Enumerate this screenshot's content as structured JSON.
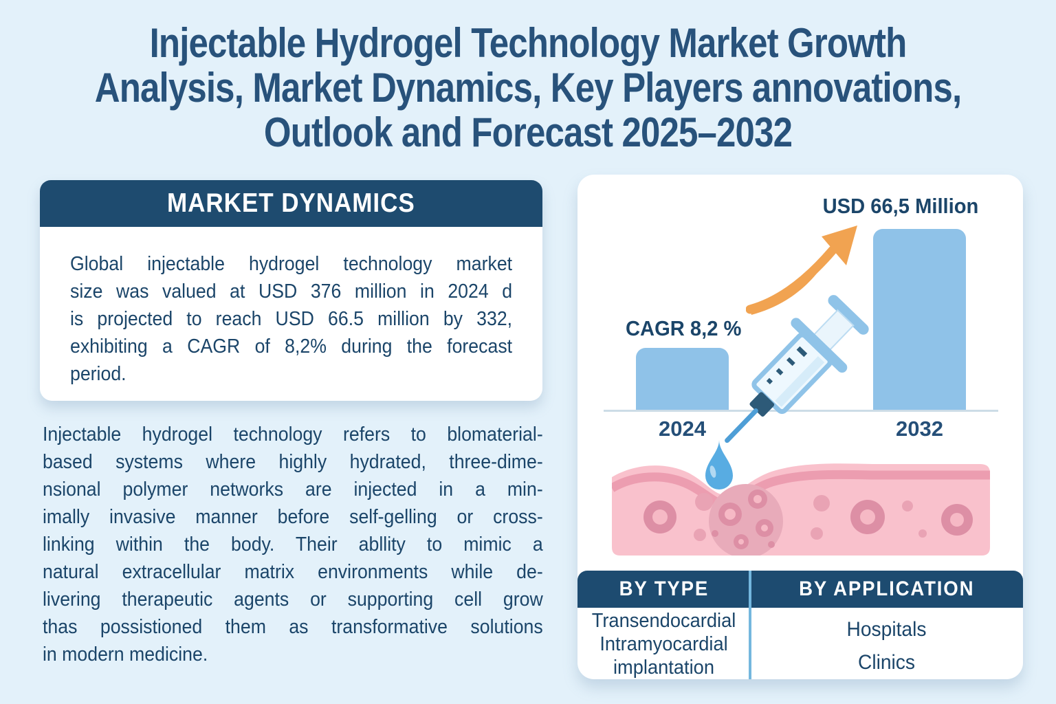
{
  "page": {
    "background": "#e3f1fa",
    "title_lines": [
      "Injectable Hydrogel Technology Market Growth",
      "Analysis, Market Dynamics, Key Players annovations,",
      "Outlook and Forecast 2025–2032"
    ]
  },
  "market_dynamics": {
    "header": "MARKET DYNAMICS",
    "lines": [
      "Global injectable hydrogel technology market",
      "size was valued at USD 376 million in 2024 d",
      "is projected to reach USD 66.5 million by 332,",
      "exhibiting a CAGR of 8,2% during the forecast",
      "period."
    ]
  },
  "description_lines": [
    "Injectable hydrogel technology refers to blomaterial-",
    "based systems where highly hydrated, three-dime-",
    "nsional polymer networks are injected in a min-",
    "imally invasive manner before self-gelling or cross-",
    "linking within the body. Their abllity to mimic a",
    "natural extracellular matrix environments while de-",
    "livering therapeutic agents or supporting cell grow",
    "thas possistioned them as transformative solutions",
    "in modern medicine."
  ],
  "chart_data": {
    "type": "bar",
    "categories": [
      "2024",
      "2032"
    ],
    "values_usd_million": [
      null,
      66.5
    ],
    "value_labels": [
      "",
      "USD 66,5 Million"
    ],
    "annotations": [
      "CAGR 8,2 %"
    ],
    "relative_heights": [
      0.345,
      1.0
    ],
    "bar_color": "#8fc2e8",
    "baseline": true,
    "grid": false,
    "legend": false
  },
  "breakdown": {
    "by_type": {
      "header": "BY TYPE",
      "items": [
        "Transendocardial",
        "Intramyocardial",
        "implantation"
      ]
    },
    "by_application": {
      "header": "BY APPLICATION",
      "items": [
        "Hospitals",
        "Clinics"
      ]
    }
  },
  "colors": {
    "title_text": "#28527b",
    "body_text": "#1b4569",
    "panel_header_bg": "#1e4b6f",
    "bar_fill": "#8fc2e8",
    "arrow_orange": "#f1a351",
    "droplet_blue": "#58ace2",
    "needle_blue": "#4e9ed6",
    "syringe_light_blue": "#8fc3e8",
    "syringe_hub_dark": "#2d5a78",
    "tissue_pink": "#f9c1cc",
    "tissue_stripe": "#ec9db0",
    "tissue_cell_ring": "#dd8fa5",
    "table_header_bg": "#1d4b70",
    "divider_blue": "#74b7de",
    "card_bg": "#ffffff"
  }
}
